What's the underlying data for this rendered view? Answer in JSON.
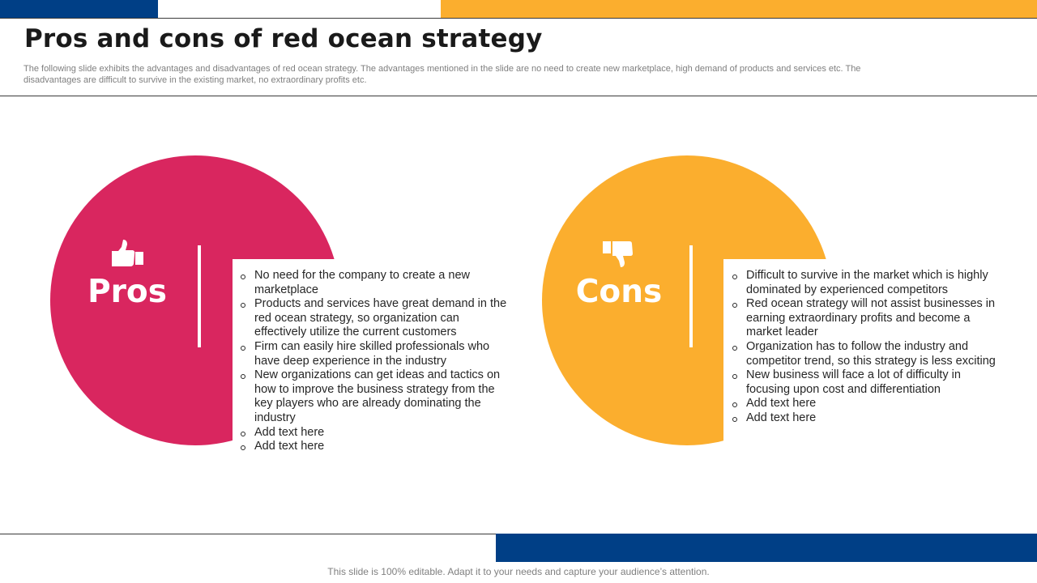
{
  "slide": {
    "title": "Pros and cons of red ocean strategy",
    "subtitle": "The following slide exhibits the advantages and disadvantages of red ocean strategy. The advantages mentioned in the slide are no need to create new marketplace, high demand of products and services etc. The disadvantages are difficult to survive in the existing market, no extraordinary profits etc.",
    "footer": "This slide is 100% editable. Adapt it to your needs and capture your audience’s attention."
  },
  "colors": {
    "blue": "#003f86",
    "orange": "#fbae2e",
    "pink": "#d9265f"
  },
  "pros": {
    "label": "Pros",
    "icon": "thumbs-up-icon",
    "items": [
      "No need for the company to create a new marketplace",
      "Products and services have great demand in the red ocean strategy, so organization can effectively utilize the current customers",
      "Firm can easily hire skilled professionals who have deep experience in the industry",
      "New organizations can get ideas and tactics on how to improve the business strategy from the key players who are already dominating the industry",
      "Add text here",
      "Add text here"
    ]
  },
  "cons": {
    "label": "Cons",
    "icon": "thumbs-down-icon",
    "items": [
      "Difficult to survive in the market which is highly dominated by experienced competitors",
      "Red ocean strategy will not assist businesses in earning extraordinary profits and become a market leader",
      "Organization has to follow the industry and competitor trend, so this strategy is less exciting",
      "New business will face a lot of difficulty in focusing upon cost and differentiation",
      "Add text here",
      "Add text here"
    ]
  }
}
